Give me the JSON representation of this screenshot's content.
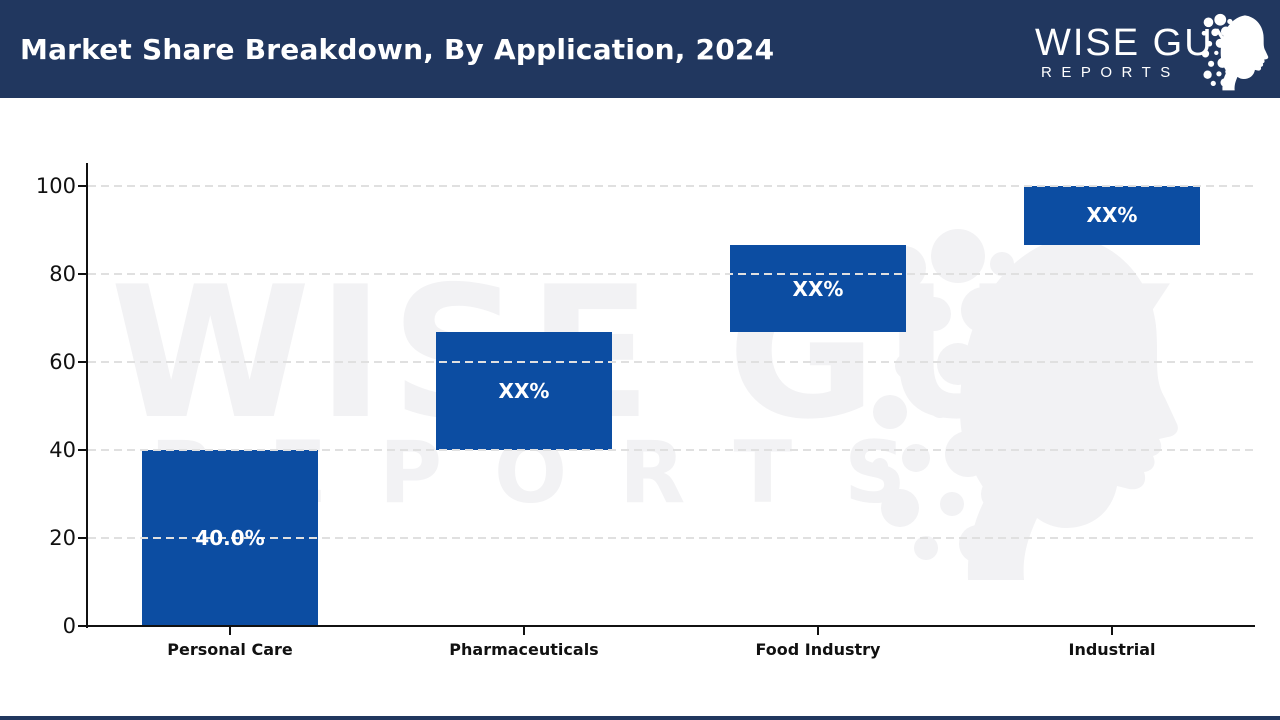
{
  "header": {
    "title": "Market Share Breakdown, By Application, 2024",
    "brand": {
      "line1": "WISE GUY",
      "line2": "REPORTS"
    }
  },
  "watermark": {
    "line1": "WISE GUY",
    "line2": "REPORTS"
  },
  "colors": {
    "header_bg": "#21375F",
    "bar": "#0C4DA2",
    "bar_label_text": "#FFFFFF",
    "grid_line": "#E0E0E0",
    "axis": "#111111",
    "watermark": "#F2F2F4"
  },
  "chart_data": {
    "type": "bar",
    "subtype": "floating-waterfall",
    "title": "Market Share Breakdown, By Application, 2024",
    "categories": [
      "Personal Care",
      "Pharmaceuticals",
      "Food Industry",
      "Industrial"
    ],
    "segments": [
      {
        "category": "Personal Care",
        "start": 0,
        "end": 40,
        "label": "40.0%"
      },
      {
        "category": "Pharmaceuticals",
        "start": 40,
        "end": 66.7,
        "label": "XX%"
      },
      {
        "category": "Food Industry",
        "start": 66.7,
        "end": 86.6,
        "label": "XX%"
      },
      {
        "category": "Industrial",
        "start": 86.6,
        "end": 100,
        "label": "XX%"
      }
    ],
    "yticks": [
      0,
      20,
      40,
      60,
      80,
      100
    ],
    "ylim": [
      0,
      105
    ],
    "xlabel": "",
    "ylabel": "",
    "grid": "horizontal-dashed",
    "legend": "none"
  }
}
